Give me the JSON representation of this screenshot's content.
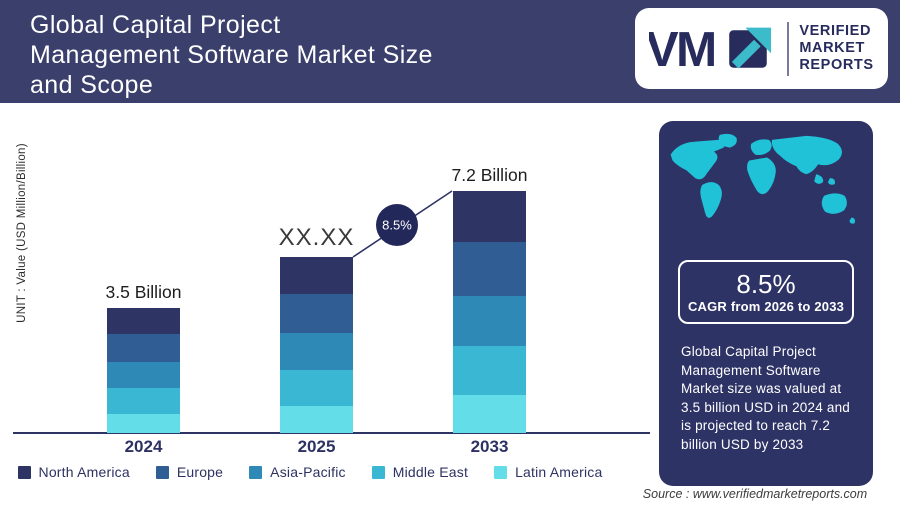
{
  "header": {
    "bg": "#3a3f6c",
    "title_lines": [
      "Global Capital Project",
      "Management Software Market Size",
      "and Scope"
    ]
  },
  "logo": {
    "mark": "VM",
    "mark_color": "#272c5c",
    "arrow_color": "#3cbccb",
    "brand_lines": [
      "VERIFIED",
      "MARKET",
      "REPORTS"
    ]
  },
  "chart_data": {
    "type": "bar",
    "stacked": true,
    "title": "Global Capital Project Management Software Market Size and Scope",
    "ylabel": "UNIT : Value (USD Million/Billion)",
    "categories": [
      "2024",
      "2025",
      "2033"
    ],
    "bar_value_labels": [
      "3.5 Billion",
      "XX.XX",
      "7.2 Billion"
    ],
    "totals_billion_usd": [
      3.5,
      null,
      7.2
    ],
    "bar_height_pct_of_max": [
      51.7,
      72.8,
      100
    ],
    "series": [
      {
        "name": "North America",
        "color": "#2e3464",
        "share_pct": 21
      },
      {
        "name": "Europe",
        "color": "#2f5d94",
        "share_pct": 22.5
      },
      {
        "name": "Asia-Pacific",
        "color": "#2e89b6",
        "share_pct": 20.5
      },
      {
        "name": "Middle East",
        "color": "#3ab7d3",
        "share_pct": 20.5
      },
      {
        "name": "Latin America",
        "color": "#63dde7",
        "share_pct": 15.5
      }
    ],
    "growth_annotation": "8.5%",
    "legend_position": "bottom",
    "grid": false,
    "axis_color": "#2e3464"
  },
  "sidebar": {
    "panel_bg": "#2e3366",
    "map_color": "#20c2d7",
    "cagr_value": "8.5%",
    "cagr_label": "CAGR from 2026 to 2033",
    "description": "Global Capital Project Management Software Market  size was valued at 3.5 billion USD in 2024 and is projected to reach 7.2 billion USD by 2033"
  },
  "source_note": "Source : www.verifiedmarketreports.com"
}
